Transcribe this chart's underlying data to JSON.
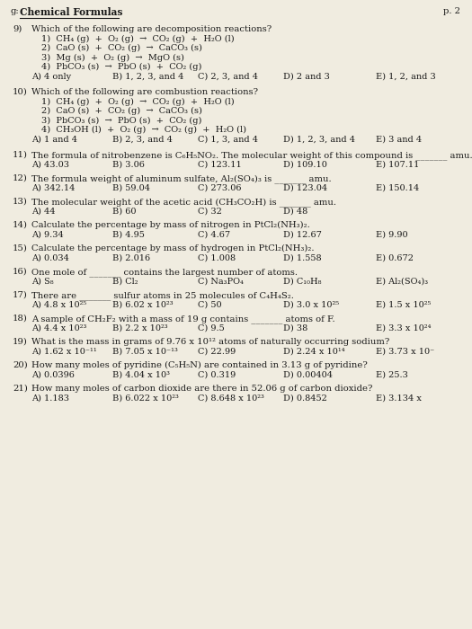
{
  "title": "Chemical Formulas",
  "page": "p. 2",
  "bg_color": "#f0ece0",
  "text_color": "#1a1a1a",
  "font_size": 7.2,
  "questions": [
    {
      "num": "9)",
      "text": "Which of the following are decomposition reactions?",
      "items": [
        "1)  CH₄ (g)  +  O₂ (g)  →  CO₂ (g)  +  H₂O (l)",
        "2)  CaO (s)  +  CO₂ (g)  →  CaCO₃ (s)",
        "3)  Mg (s)  +  O₂ (g)  →  MgO (s)",
        "4)  PbCO₃ (s)  →  PbO (s)  +  CO₂ (g)"
      ],
      "choices": [
        "A) 4 only",
        "B) 1, 2, 3, and 4",
        "C) 2, 3, and 4",
        "D) 2 and 3",
        "E) 1, 2, and 3"
      ],
      "extra_space_before": 0
    },
    {
      "num": "10)",
      "text": "Which of the following are combustion reactions?",
      "items": [
        "1)  CH₄ (g)  +  O₂ (g)  →  CO₂ (g)  +  H₂O (l)",
        "2)  CaO (s)  +  CO₂ (g)  →  CaCO₃ (s)",
        "3)  PbCO₃ (s)  →  PbO (s)  +  CO₂ (g)",
        "4)  CH₃OH (l)  +  O₂ (g)  →  CO₂ (g)  +  H₂O (l)"
      ],
      "choices": [
        "A) 1 and 4",
        "B) 2, 3, and 4",
        "C) 1, 3, and 4",
        "D) 1, 2, 3, and 4",
        "E) 3 and 4"
      ],
      "extra_space_before": 6
    },
    {
      "num": "11)",
      "text": "The formula of nitrobenzene is C₆H₅NO₂. The molecular weight of this compound is _______ amu.",
      "items": [],
      "choices": [
        "A) 43.03",
        "B) 3.06",
        "C) 123.11",
        "D) 109.10",
        "E) 107.11"
      ],
      "extra_space_before": 6
    },
    {
      "num": "12)",
      "text": "The formula weight of aluminum sulfate, Al₂(SO₄)₃ is _______ amu.",
      "items": [],
      "choices": [
        "A) 342.14",
        "B) 59.04",
        "C) 273.06",
        "D) 123.04",
        "E) 150.14"
      ],
      "extra_space_before": 4
    },
    {
      "num": "13)",
      "text": "The molecular weight of the acetic acid (CH₃CO₂H) is _______ amu.",
      "items": [],
      "choices": [
        "A) 44",
        "B) 60",
        "C) 32",
        "D) 48",
        ""
      ],
      "extra_space_before": 4
    },
    {
      "num": "14)",
      "text": "Calculate the percentage by mass of nitrogen in PtCl₂(NH₃)₂.",
      "items": [],
      "choices": [
        "A) 9.34",
        "B) 4.95",
        "C) 4.67",
        "D) 12.67",
        "E) 9.90"
      ],
      "extra_space_before": 4
    },
    {
      "num": "15)",
      "text": "Calculate the percentage by mass of hydrogen in PtCl₂(NH₃)₂.",
      "items": [],
      "choices": [
        "A) 0.034",
        "B) 2.016",
        "C) 1.008",
        "D) 1.558",
        "E) 0.672"
      ],
      "extra_space_before": 4
    },
    {
      "num": "16)",
      "text": "One mole of _______ contains the largest number of atoms.",
      "items": [],
      "choices": [
        "A) S₈",
        "B) Cl₂",
        "C) Na₃PO₄",
        "D) C₁₀H₈",
        "E) Al₂(SO₄)₃"
      ],
      "extra_space_before": 4
    },
    {
      "num": "17)",
      "text": "There are _______ sulfur atoms in 25 molecules of C₄H₄S₂.",
      "items": [],
      "choices": [
        "A) 4.8 x 10²⁵",
        "B) 6.02 x 10²³",
        "C) 50",
        "D) 3.0 x 10²⁵",
        "E) 1.5 x 10²⁵"
      ],
      "extra_space_before": 4
    },
    {
      "num": "18)",
      "text": "A sample of CH₂F₂ with a mass of 19 g contains _______ atoms of F.",
      "items": [],
      "choices": [
        "A) 4.4 x 10²³",
        "B) 2.2 x 10²³",
        "C) 9.5",
        "D) 38",
        "E) 3.3 x 10²⁴"
      ],
      "extra_space_before": 4
    },
    {
      "num": "19)",
      "text": "What is the mass in grams of 9.76 x 10¹² atoms of naturally occurring sodium?",
      "items": [],
      "choices": [
        "A) 1.62 x 10⁻¹¹",
        "B) 7.05 x 10⁻¹³",
        "C) 22.99",
        "D) 2.24 x 10¹⁴",
        "E) 3.73 x 10⁻"
      ],
      "extra_space_before": 4
    },
    {
      "num": "20)",
      "text": "How many moles of pyridine (C₅H₅N) are contained in 3.13 g of pyridine?",
      "items": [],
      "choices": [
        "A) 0.0396",
        "B) 4.04 x 10³",
        "C) 0.319",
        "D) 0.00404",
        "E) 25.3"
      ],
      "extra_space_before": 4
    },
    {
      "num": "21)",
      "text": "How many moles of carbon dioxide are there in 52.06 g of carbon dioxide?",
      "items": [],
      "choices": [
        "A) 1.183",
        "B) 6.022 x 10²³",
        "C) 8.648 x 10²³",
        "D) 0.8452",
        "E) 3.134 x"
      ],
      "extra_space_before": 4
    }
  ]
}
